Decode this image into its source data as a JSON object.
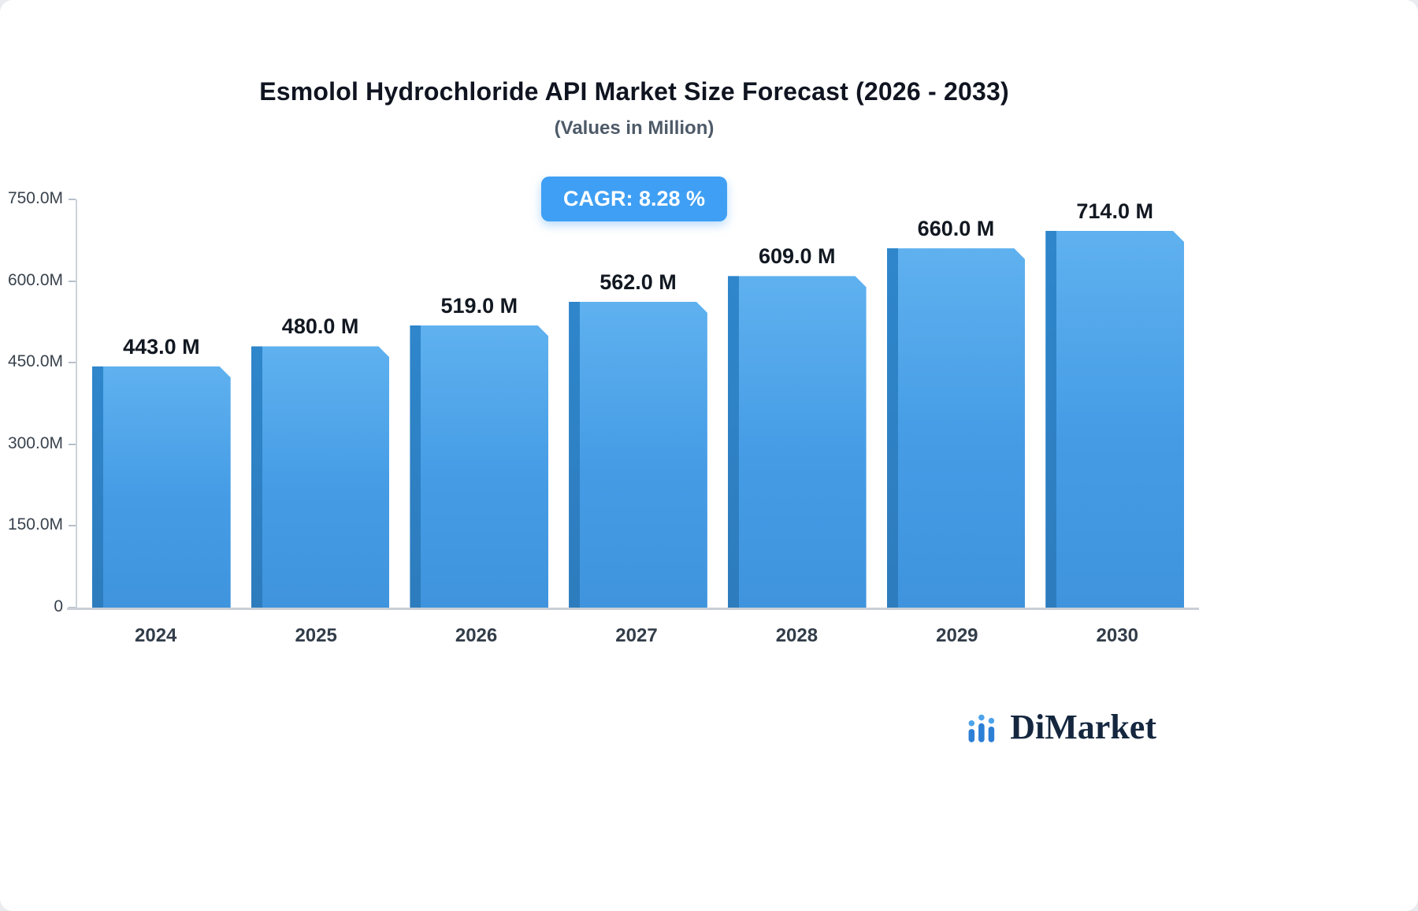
{
  "title": "Esmolol Hydrochloride API Market Size Forecast (2026 - 2033)",
  "subtitle": "(Values in Million)",
  "badge": {
    "label": "CAGR: 8.28 %",
    "color": "#3f9ff4"
  },
  "chart_data": {
    "type": "bar",
    "categories": [
      "2024",
      "2025",
      "2026",
      "2027",
      "2028",
      "2029",
      "2030"
    ],
    "values": [
      443,
      480,
      519,
      562,
      609,
      660,
      714
    ],
    "value_labels": [
      "443.0 M",
      "480.0 M",
      "519.0 M",
      "562.0 M",
      "609.0 M",
      "660.0 M",
      "714.0 M"
    ],
    "y_ticks": [
      "750.0M",
      "600.0M",
      "450.0M",
      "300.0M",
      "150.0M",
      "0"
    ],
    "ylim": [
      0,
      750
    ],
    "xlabel": "",
    "ylabel": "",
    "grid": false,
    "legend": "none",
    "bar_color": "#459ce5",
    "bar_side_color": "#2d7cbd"
  },
  "logo": {
    "text": "DiMarket"
  }
}
